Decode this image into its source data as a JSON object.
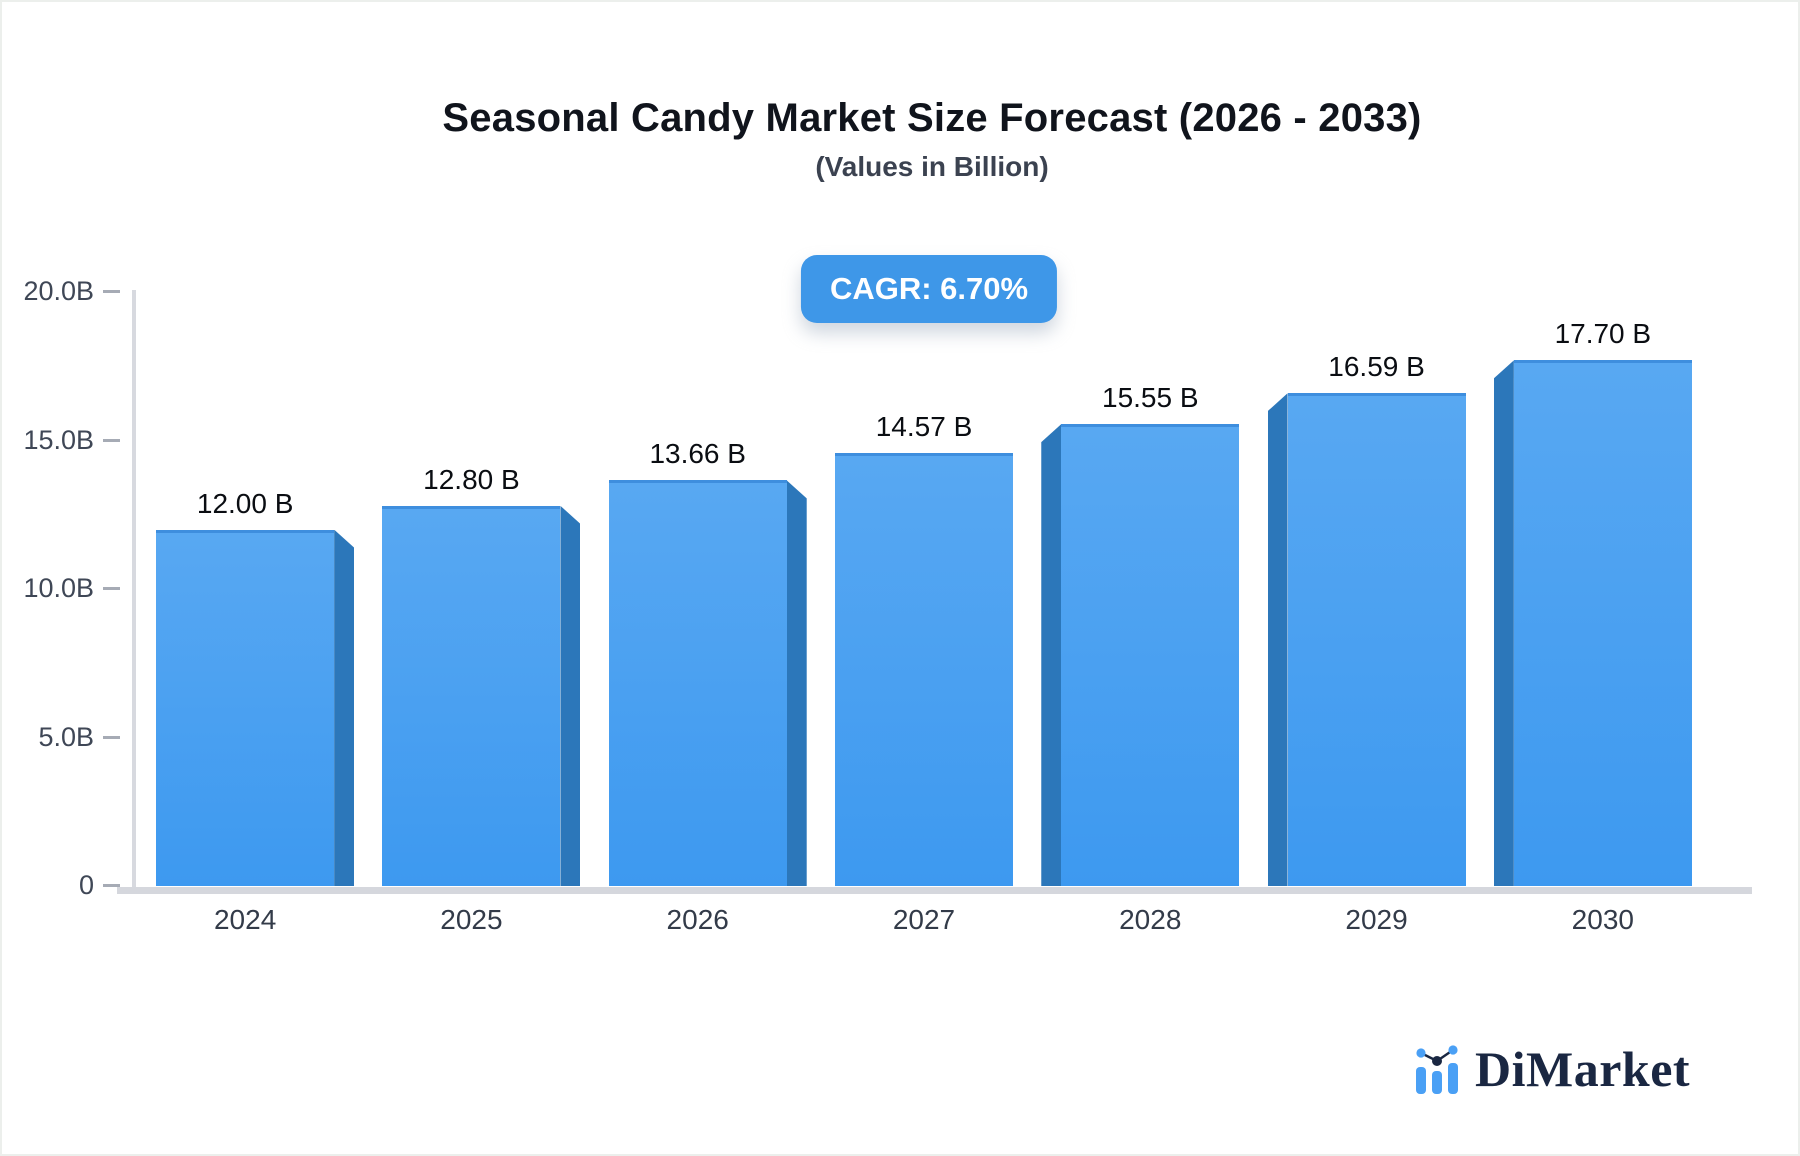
{
  "header": {
    "title": "Seasonal Candy Market Size Forecast (2026 - 2033)",
    "subtitle": "(Values in Billion)"
  },
  "badge": {
    "label": "CAGR: 6.70%",
    "background": "#3e97e8",
    "text_color": "#ffffff"
  },
  "chart_data": {
    "type": "bar",
    "title": "Seasonal Candy Market Size Forecast (2026 - 2033)",
    "subtitle": "(Values in Billion)",
    "cagr_label": "CAGR: 6.70%",
    "categories": [
      "2024",
      "2025",
      "2026",
      "2027",
      "2028",
      "2029",
      "2030"
    ],
    "values": [
      12.0,
      12.8,
      13.66,
      14.57,
      15.55,
      16.59,
      17.7
    ],
    "value_labels": [
      "12.00 B",
      "12.80 B",
      "13.66 B",
      "14.57 B",
      "15.55 B",
      "16.59 B",
      "17.70 B"
    ],
    "xlabel": "",
    "ylabel": "",
    "ylim": [
      0,
      20
    ],
    "yticks": [
      {
        "label": "20.0B",
        "value": 20
      },
      {
        "label": "15.0B",
        "value": 15
      },
      {
        "label": "10.0B",
        "value": 10
      },
      {
        "label": "5.0B",
        "value": 5
      },
      {
        "label": "0",
        "value": 0
      }
    ],
    "grid": false,
    "legend": false,
    "bar_style": "3d-beveled",
    "colors": {
      "bar_face_top": "#58a8f2",
      "bar_face_bottom": "#3d99f0",
      "bar_top_edge": "#3e8ede",
      "bar_side": "#2c77ba",
      "axis": "#d7d9df",
      "tick": "#a6abb5",
      "tick_text": "#3f4756",
      "value_text": "#0a0d12"
    }
  },
  "logo": {
    "text": "DiMarket",
    "icon": "mini-bar-chart-icon",
    "icon_blue": "#4aa0f5",
    "navy": "#1a2742"
  }
}
